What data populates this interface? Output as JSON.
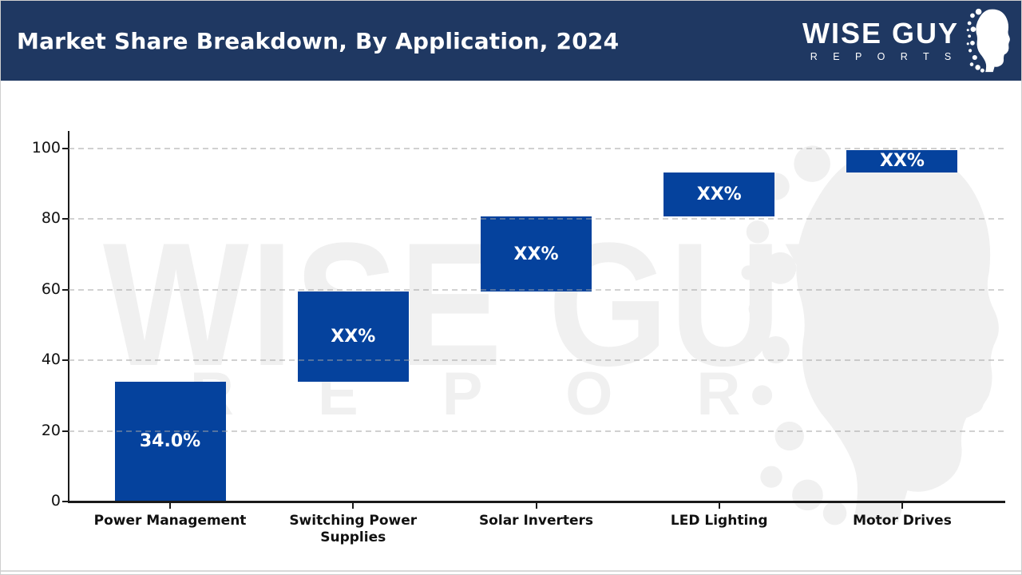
{
  "header": {
    "title": "Market Share Breakdown, By Application, 2024",
    "bg_color": "#1f3862",
    "logo": {
      "line1": "WISE GUY",
      "line2": "R E P O R T S"
    }
  },
  "watermark": {
    "line1": "WISE GUY",
    "line2": "R E P O R T S"
  },
  "chart_data": {
    "type": "bar",
    "subtype": "waterfall",
    "title": "Market Share Breakdown, By Application, 2024",
    "categories": [
      "Power Management",
      "Switching Power Supplies",
      "Solar Inverters",
      "LED Lighting",
      "Motor Drives"
    ],
    "segments": [
      {
        "category": "Power Management",
        "label": "34.0%",
        "start": 0,
        "end": 34.0
      },
      {
        "category": "Switching Power Supplies",
        "label": "XX%",
        "start": 34.0,
        "end": 59.5
      },
      {
        "category": "Solar Inverters",
        "label": "XX%",
        "start": 59.5,
        "end": 80.8
      },
      {
        "category": "LED Lighting",
        "label": "XX%",
        "start": 80.8,
        "end": 93.3
      },
      {
        "category": "Motor Drives",
        "label": "XX%",
        "start": 93.3,
        "end": 99.6
      }
    ],
    "values_note": "values after the first are masked as XX% in the source image; start/end are cumulative percentages read from the axis",
    "yticks": [
      0,
      20,
      40,
      60,
      80,
      100
    ],
    "ylim": [
      0,
      105
    ],
    "xlabel": "",
    "ylabel": "",
    "grid": true,
    "grid_style": "dashed",
    "legend": "none",
    "bar_color": "#05429d",
    "axis_color": "#1a1a1a"
  }
}
